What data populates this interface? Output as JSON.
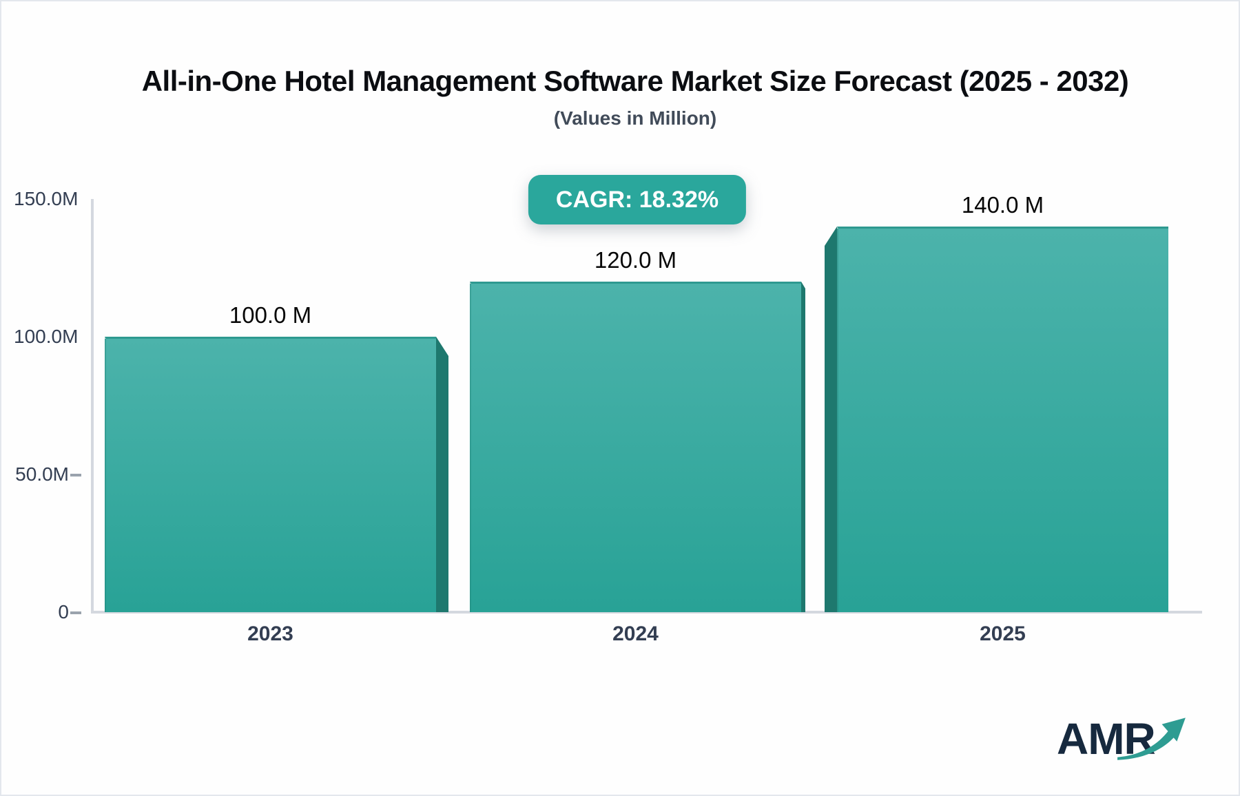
{
  "chart_data": {
    "type": "bar",
    "title": "All-in-One Hotel Management Software Market Size Forecast (2025 - 2032)",
    "subtitle": "(Values in Million)",
    "cagr_label": "CAGR: 18.32%",
    "cagr_percent": 18.32,
    "categories": [
      "2023",
      "2024",
      "2025"
    ],
    "values": [
      100,
      120,
      140
    ],
    "value_labels": [
      "100.0 M",
      "120.0 M",
      "140.0 M"
    ],
    "unit": "Million",
    "y_axis": {
      "range": [
        0,
        150
      ],
      "tick_values": [
        150,
        100,
        50,
        0
      ],
      "tick_labels": [
        "150.0M",
        "100.0M",
        "50.0M",
        "0"
      ],
      "dash_tick_values": [
        50,
        0
      ]
    },
    "grid": false,
    "legend": "none"
  },
  "logo": {
    "text": "AMR",
    "icon": "trend-up-arrow-icon"
  },
  "colors": {
    "title": "#0b0d11",
    "subtitle": "#414b59",
    "badge": "#2aa79c",
    "bar_top": "#4cb3ab",
    "bar_bottom": "#28a296",
    "bar_edge": "#2e9990",
    "bar_side": "#1e786e",
    "axis": "#d4d8df",
    "tick": "#9aa3ad",
    "label": "#333e52",
    "value_label": "#070707",
    "logo_navy": "#16293e",
    "logo_teal": "#2e9c92"
  }
}
